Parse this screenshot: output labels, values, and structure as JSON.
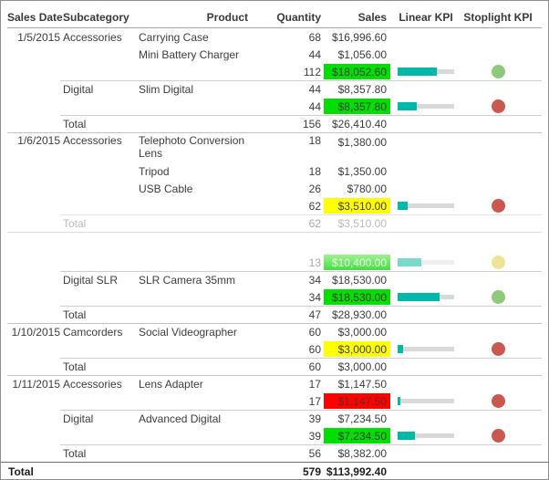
{
  "table": {
    "columns": [
      "Sales Date",
      "Subcategory",
      "Product",
      "Quantity",
      "Sales",
      "Linear KPI",
      "Stoplight KPI"
    ],
    "rows": [
      {
        "date": "1/5/2015",
        "subcat": "Accessories",
        "product": "Carrying Case",
        "qty": "68",
        "sales": "$16,996.60",
        "kind": "detail",
        "sep": "none"
      },
      {
        "product": "Mini Battery Charger",
        "qty": "44",
        "sales": "$1,056.00",
        "kind": "detail",
        "sep": "none"
      },
      {
        "qty": "112",
        "sales": "$18,052.60",
        "bg": "green",
        "bar": 70,
        "dot": "green",
        "kind": "subtotal",
        "sep": "none"
      },
      {
        "subcat": "Digital",
        "product": "Slim Digital",
        "qty": "44",
        "sales": "$8,357.80",
        "kind": "detail",
        "sep": "sub"
      },
      {
        "qty": "44",
        "sales": "$8,357.80",
        "bg": "green",
        "bar": 34,
        "dot": "red",
        "kind": "subtotal",
        "sep": "none"
      },
      {
        "subcat": "Total",
        "qty": "156",
        "sales": "$26,410.40",
        "kind": "total",
        "sep": "sub"
      },
      {
        "date": "1/6/2015",
        "subcat": "Accessories",
        "product": "Telephoto Conversion Lens",
        "qty": "18",
        "sales": "$1,380.00",
        "kind": "detail",
        "sep": "full",
        "tall": true
      },
      {
        "product": "Tripod",
        "qty": "18",
        "sales": "$1,350.00",
        "kind": "detail",
        "sep": "none"
      },
      {
        "product": "USB Cable",
        "qty": "26",
        "sales": "$780.00",
        "kind": "detail",
        "sep": "none"
      },
      {
        "qty": "62",
        "sales": "$3,510.00",
        "bg": "yellow",
        "bar": 18,
        "dot": "red",
        "kind": "subtotal",
        "sep": "none"
      },
      {
        "subcat": "Total",
        "qty": "62",
        "sales": "$3,510.00",
        "kind": "total",
        "sep": "sub",
        "faded": true
      },
      {
        "kind": "gap",
        "sep": "full-light"
      },
      {
        "qty": "13",
        "sales": "$10,400.00",
        "bg": "green-faded",
        "bar": 42,
        "barFaded": true,
        "dot": "yellow-faded",
        "kind": "subtotal",
        "sep": "none",
        "faded": true
      },
      {
        "subcat": "Digital SLR",
        "product": "SLR Camera 35mm",
        "qty": "34",
        "sales": "$18,530.00",
        "kind": "detail",
        "sep": "sub"
      },
      {
        "qty": "34",
        "sales": "$18,530.00",
        "bg": "green",
        "bar": 74,
        "dot": "green",
        "kind": "subtotal",
        "sep": "none"
      },
      {
        "subcat": "Total",
        "qty": "47",
        "sales": "$28,930.00",
        "kind": "total",
        "sep": "sub"
      },
      {
        "date": "1/10/2015",
        "subcat": "Camcorders",
        "product": "Social Videographer",
        "qty": "60",
        "sales": "$3,000.00",
        "kind": "detail",
        "sep": "full"
      },
      {
        "qty": "60",
        "sales": "$3,000.00",
        "bg": "yellow",
        "bar": 10,
        "dot": "red",
        "kind": "subtotal",
        "sep": "none"
      },
      {
        "subcat": "Total",
        "qty": "60",
        "sales": "$3,000.00",
        "kind": "total",
        "sep": "sub"
      },
      {
        "date": "1/11/2015",
        "subcat": "Accessories",
        "product": "Lens Adapter",
        "qty": "17",
        "sales": "$1,147.50",
        "kind": "detail",
        "sep": "full"
      },
      {
        "qty": "17",
        "sales": "$1,147.50",
        "bg": "red",
        "bar": 5,
        "dot": "red",
        "kind": "subtotal",
        "sep": "none"
      },
      {
        "subcat": "Digital",
        "product": "Advanced Digital",
        "qty": "39",
        "sales": "$7,234.50",
        "kind": "detail",
        "sep": "sub"
      },
      {
        "qty": "39",
        "sales": "$7,234.50",
        "bg": "green",
        "bar": 30,
        "dot": "red",
        "kind": "subtotal",
        "sep": "none"
      },
      {
        "subcat": "Total",
        "qty": "56",
        "sales": "$8,382.00",
        "kind": "total",
        "sep": "sub"
      },
      {
        "date": "Total",
        "qty": "579",
        "sales": "$113,992.40",
        "kind": "grand",
        "sep": "grand"
      }
    ],
    "colors": {
      "kpi_bar_fill": "#00b8aa",
      "kpi_bar_track": "#d9d9d9",
      "cell_green": "#00dd00",
      "cell_yellow": "#ffff00",
      "cell_red": "#ff0000",
      "stoplight_green": "#8fc97c",
      "stoplight_red": "#c9584f",
      "stoplight_yellow_faded": "#efe398"
    }
  }
}
